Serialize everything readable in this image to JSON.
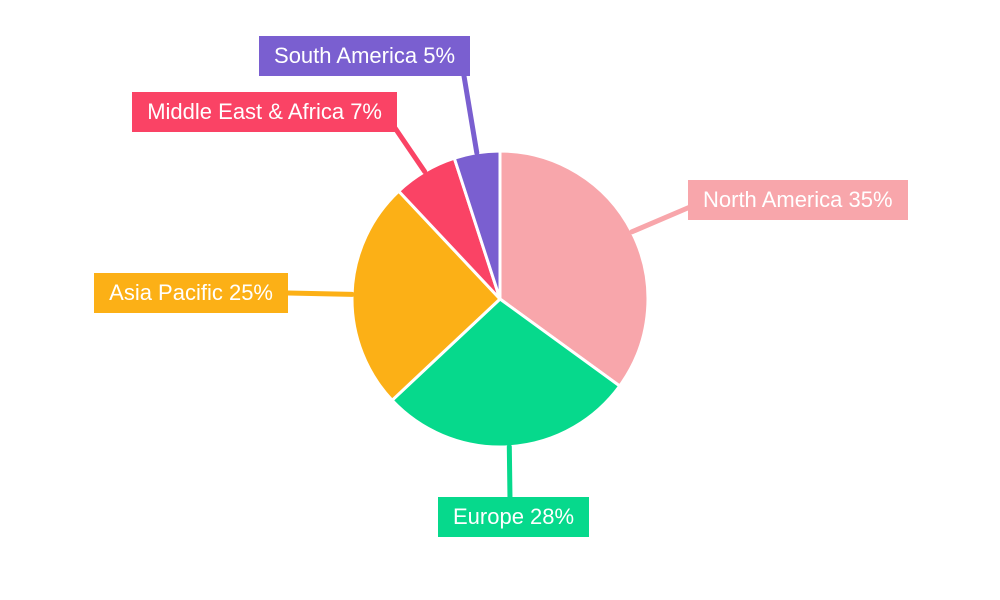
{
  "chart_data": {
    "type": "pie",
    "categories": [
      "North America",
      "Europe",
      "Asia Pacific",
      "Middle East & Africa",
      "South America"
    ],
    "values": [
      35,
      28,
      25,
      7,
      5
    ],
    "unit": "%",
    "colors": [
      "#F8A6AB",
      "#06D98C",
      "#FCB016",
      "#FA4365",
      "#7A5FD0"
    ],
    "labels_display": [
      "North America 35%",
      "Europe 28%",
      "Asia Pacific 25%",
      "Middle East & Africa 7%",
      "South America 5%"
    ],
    "start_angle": "top",
    "direction": "clockwise",
    "labels_position": "outside-colored-boxes",
    "label_text_color": "#ffffff",
    "slice_gap_color": "#ffffff",
    "legend": "none",
    "background": "#ffffff"
  }
}
